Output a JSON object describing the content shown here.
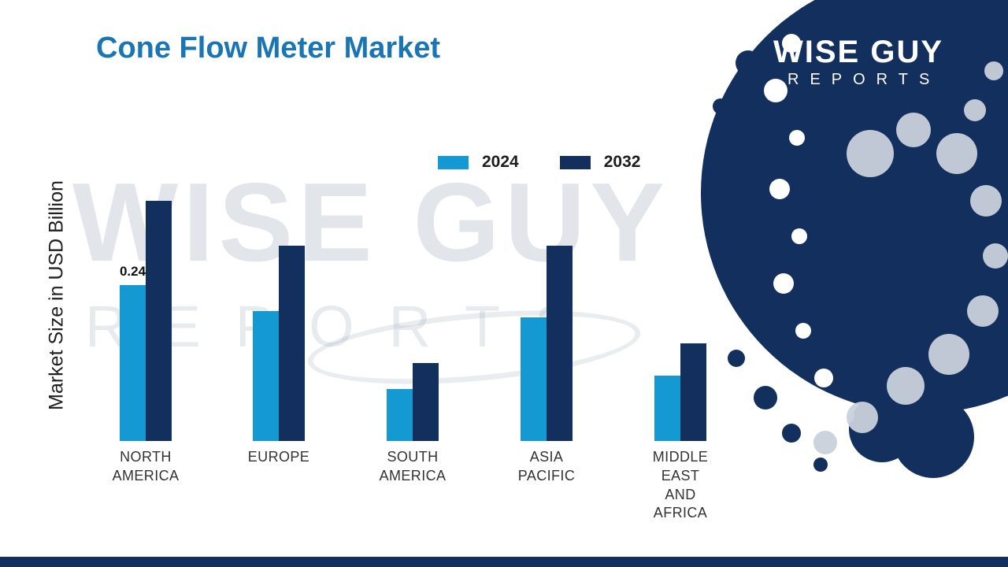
{
  "page": {
    "title": "Cone Flow Meter Market"
  },
  "logo": {
    "line1": "WISE GUY",
    "line2": "REPORTS"
  },
  "watermark": {
    "line1": "WISE GUY",
    "line2": "REPORTS"
  },
  "chart_data": {
    "type": "bar",
    "title": "Cone Flow Meter Market",
    "ylabel": "Market Size in USD Billion",
    "xlabel": "",
    "categories": [
      "NORTH AMERICA",
      "EUROPE",
      "SOUTH AMERICA",
      "ASIA PACIFIC",
      "MIDDLE EAST AND AFRICA"
    ],
    "series": [
      {
        "name": "2024",
        "color": "#1499d3",
        "values": [
          0.24,
          0.2,
          0.08,
          0.19,
          0.1
        ]
      },
      {
        "name": "2032",
        "color": "#122f5d",
        "values": [
          0.37,
          0.3,
          0.12,
          0.3,
          0.15
        ]
      }
    ],
    "ylim": [
      0,
      0.4
    ],
    "grid": false,
    "legend_position": "top-center",
    "data_labels": [
      {
        "category_index": 0,
        "series_index": 0,
        "text": "0.24"
      }
    ]
  },
  "colors": {
    "title_blue": "#1a75b5",
    "bar_blue": "#1499d3",
    "navy": "#122f5d",
    "watermark_gray": "#c9d1db"
  }
}
